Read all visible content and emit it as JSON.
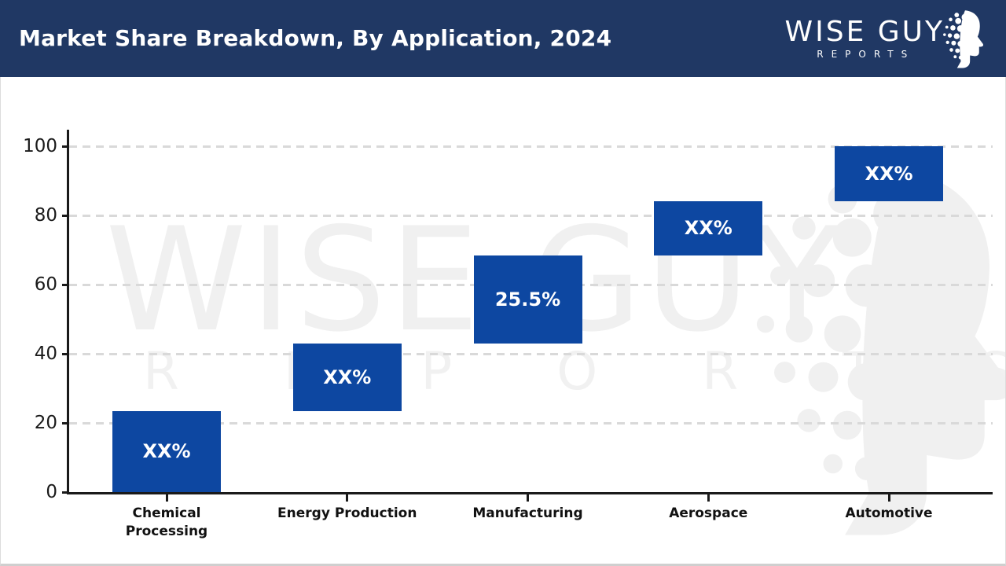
{
  "header": {
    "title": "Market Share Breakdown, By Application, 2024",
    "bg_color": "#203864",
    "logo": {
      "line1": "WISE GUY",
      "line2": "REPORTS"
    }
  },
  "watermark": {
    "line1": "WISE GUY",
    "line2": "R E P O R T S"
  },
  "chart_data": {
    "type": "bar",
    "subtype": "floating-waterfall",
    "title": "Market Share Breakdown, By Application, 2024",
    "categories": [
      "Chemical\nProcessing",
      "Energy Production",
      "Manufacturing",
      "Aerospace",
      "Automotive"
    ],
    "segments": [
      {
        "category": "Chemical Processing",
        "start": 0,
        "end": 23.5,
        "label": "XX%"
      },
      {
        "category": "Energy Production",
        "start": 23.5,
        "end": 43,
        "label": "XX%"
      },
      {
        "category": "Manufacturing",
        "start": 43,
        "end": 68.5,
        "label": "25.5%"
      },
      {
        "category": "Aerospace",
        "start": 68.5,
        "end": 84.2,
        "label": "XX%"
      },
      {
        "category": "Automotive",
        "start": 84.2,
        "end": 100,
        "label": "XX%"
      }
    ],
    "values": [
      23.5,
      19.5,
      25.5,
      15.7,
      15.8
    ],
    "xlabel": "",
    "ylabel": "",
    "ylim": [
      0,
      100
    ],
    "yticks": [
      0,
      20,
      40,
      60,
      80,
      100
    ],
    "grid": "horizontal-dashed",
    "legend": "none",
    "bar_color": "#0d47a1",
    "bar_label_color": "#ffffff",
    "axis_color": "#1a1a1a",
    "gridline_color": "#d9d9d9"
  }
}
